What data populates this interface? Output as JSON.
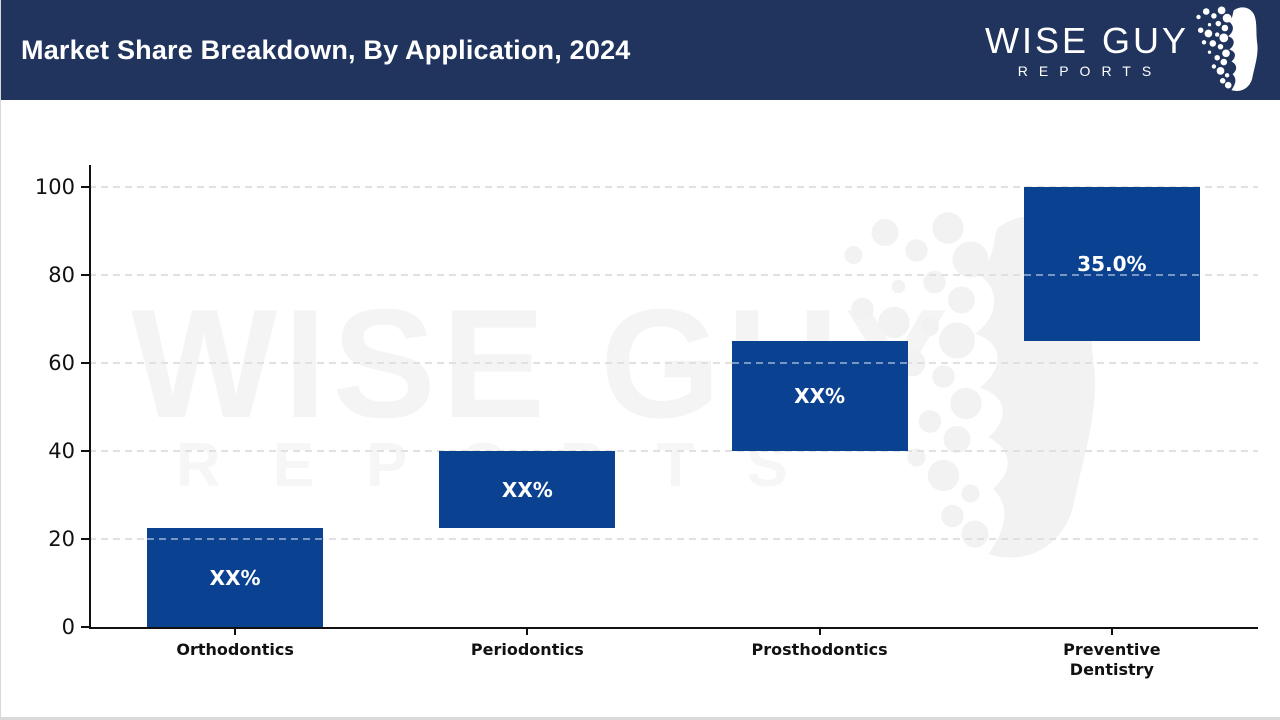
{
  "header": {
    "title": "Market Share Breakdown, By Application, 2024",
    "logo": {
      "line1": "WISE GUY",
      "line2": "REPORTS"
    }
  },
  "watermark": {
    "line1": "WISE GUY",
    "line2": "REPORTS"
  },
  "colors": {
    "header_bg": "#20345e",
    "bar": "#0b4191",
    "axis": "#111111",
    "gridline": "#e1e1e1",
    "bar_label": "#ffffff"
  },
  "chart_data": {
    "type": "bar",
    "subtype": "waterfall",
    "title": "Market Share Breakdown, By Application, 2024",
    "xlabel": "",
    "ylabel": "",
    "grid": true,
    "legend": null,
    "ylim": [
      0,
      105
    ],
    "yticks": [
      "0",
      "20",
      "40",
      "60",
      "80",
      "100"
    ],
    "categories": [
      "Orthodontics",
      "Periodontics",
      "Prosthodontics",
      "Preventive\nDentistry"
    ],
    "segments": [
      {
        "category": "Orthodontics",
        "start": 0,
        "end": 22.5,
        "value": 22.5,
        "label": "XX%"
      },
      {
        "category": "Periodontics",
        "start": 22.5,
        "end": 40,
        "value": 17.5,
        "label": "XX%"
      },
      {
        "category": "Prosthodontics",
        "start": 40,
        "end": 65,
        "value": 25,
        "label": "XX%"
      },
      {
        "category": "Preventive Dentistry",
        "start": 65,
        "end": 100,
        "value": 35,
        "label": "35.0%"
      }
    ]
  }
}
